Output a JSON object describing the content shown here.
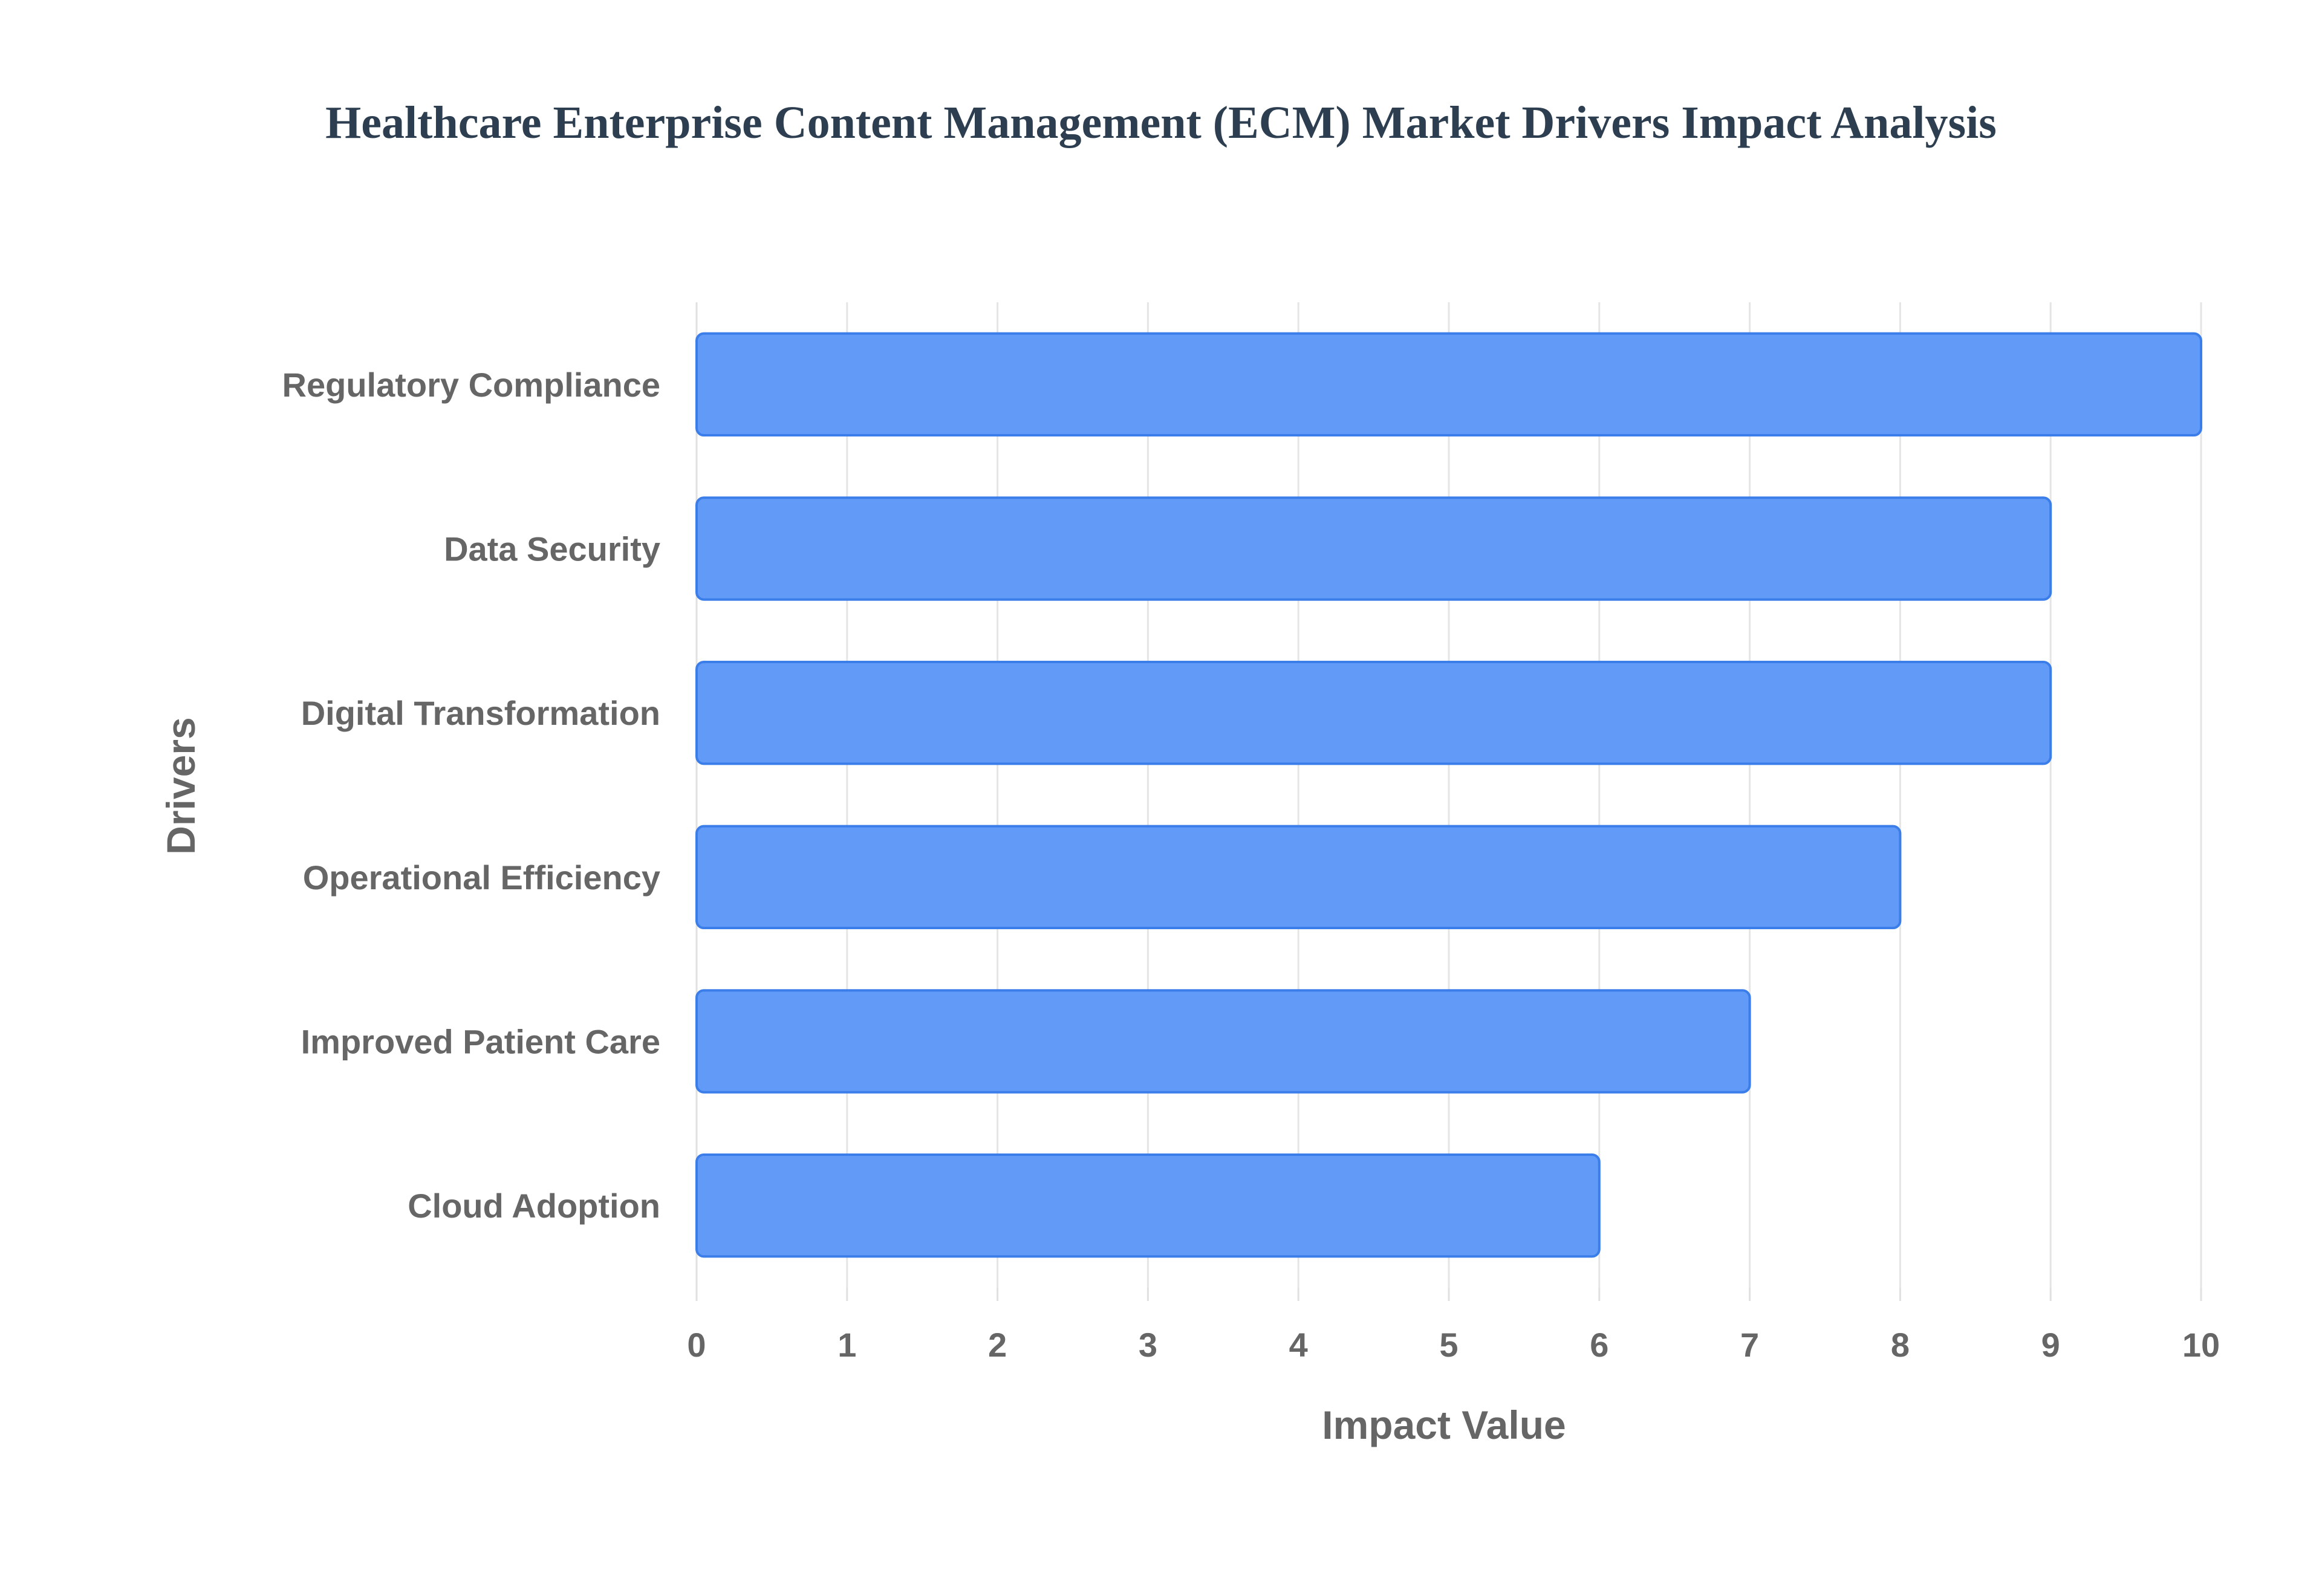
{
  "chart_data": {
    "type": "bar",
    "orientation": "horizontal",
    "title": "Healthcare Enterprise Content Management (ECM) Market Drivers Impact Analysis",
    "xlabel": "Impact Value",
    "ylabel": "Drivers",
    "categories": [
      "Regulatory Compliance",
      "Data Security",
      "Digital Transformation",
      "Operational Efficiency",
      "Improved Patient Care",
      "Cloud Adoption"
    ],
    "values": [
      10,
      9,
      9,
      8,
      7,
      6
    ],
    "xlim": [
      0,
      10
    ],
    "xticks": [
      0,
      1,
      2,
      3,
      4,
      5,
      6,
      7,
      8,
      9,
      10
    ],
    "grid": true,
    "legend": "none",
    "colors": {
      "bar_fill": "#619bf7",
      "bar_stroke": "#3b7de9",
      "title": "#2c3e50",
      "text": "#666666",
      "grid": "#e5e5e5"
    }
  }
}
